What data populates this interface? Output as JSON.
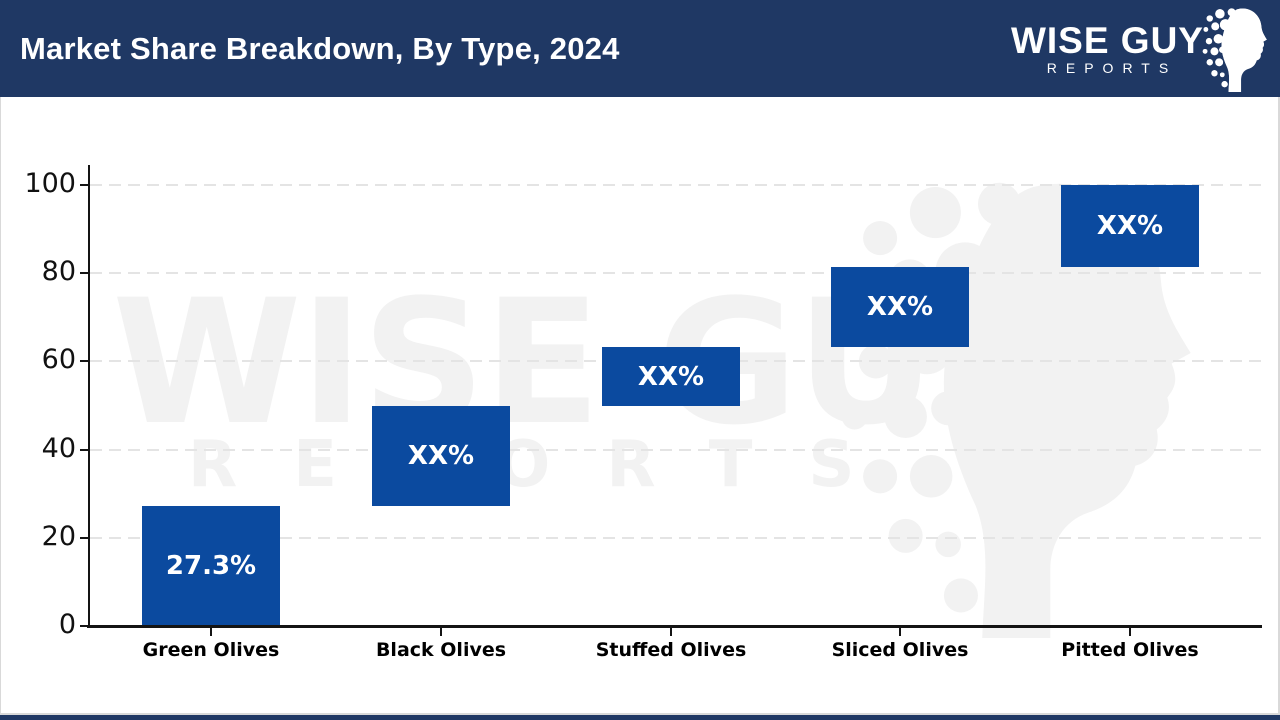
{
  "header": {
    "title": "Market Share Breakdown, By Type, 2024",
    "logo": {
      "line1": "WISE GUY",
      "line2": "REPORTS"
    }
  },
  "watermark": {
    "line1": "WISE GUY",
    "line2": "REPORTS"
  },
  "colors": {
    "header_navy": "#1f3864",
    "bar_blue": "#0b4a9f",
    "gridline_gray": "#e4e4e4",
    "watermark_gray": "#f2f2f2"
  },
  "chart_data": {
    "type": "bar",
    "subtype": "floating-waterfall",
    "title": "Market Share Breakdown, By Type, 2024",
    "categories": [
      "Green Olives",
      "Black Olives",
      "Stuffed Olives",
      "Sliced Olives",
      "Pitted Olives"
    ],
    "series": [
      {
        "name": "Market Share %",
        "segments": [
          {
            "start": 0,
            "end": 27.3,
            "label": "27.3%"
          },
          {
            "start": 27.3,
            "end": 49.9,
            "label": "XX%"
          },
          {
            "start": 49.9,
            "end": 63.2,
            "label": "XX%"
          },
          {
            "start": 63.2,
            "end": 81.3,
            "label": "XX%"
          },
          {
            "start": 81.3,
            "end": 100,
            "label": "XX%"
          }
        ]
      }
    ],
    "bar_labels": [
      "27.3%",
      "XX%",
      "XX%",
      "XX%",
      "XX%"
    ],
    "xlabel": "",
    "ylabel": "",
    "ylim": [
      0,
      100
    ],
    "yticks": [
      0,
      20,
      40,
      60,
      80,
      100
    ],
    "grid": "horizontal dashed",
    "legend": "none",
    "bar_color": "#0b4a9f"
  }
}
